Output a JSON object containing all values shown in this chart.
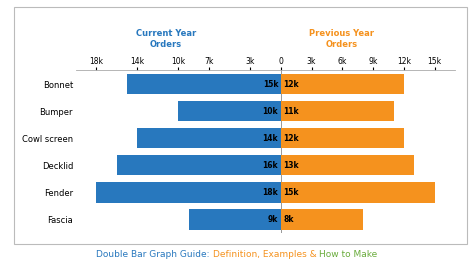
{
  "categories": [
    "Fascia",
    "Fender",
    "Decklid",
    "Cowl screen",
    "Bumper",
    "Bonnet"
  ],
  "current_year": [
    9,
    18,
    16,
    14,
    10,
    15
  ],
  "previous_year": [
    8,
    15,
    13,
    12,
    11,
    12
  ],
  "bar_color_current": "#2878BE",
  "bar_color_previous": "#F5921E",
  "x_ticks": [
    -18,
    -14,
    -10,
    -7,
    -3,
    0,
    3,
    6,
    9,
    12,
    15
  ],
  "x_tick_labels": [
    "18k",
    "14k",
    "10k",
    "7k",
    "3k",
    "0",
    "3k",
    "6k",
    "9k",
    "12k",
    "15k"
  ],
  "xlim": [
    -20,
    17
  ],
  "current_label_title": "Current Year\nOrders",
  "previous_label_title": "Previous Year\nOrders",
  "current_label_color": "#2878BE",
  "previous_label_color": "#F5921E",
  "subtitle_color1": "#2878BE",
  "subtitle_color2": "#F5921E",
  "subtitle_color3": "#6AAC3C",
  "bg_color": "#FFFFFF",
  "chart_bg": "#FFFFFF",
  "border_color": "#CCCCCC"
}
